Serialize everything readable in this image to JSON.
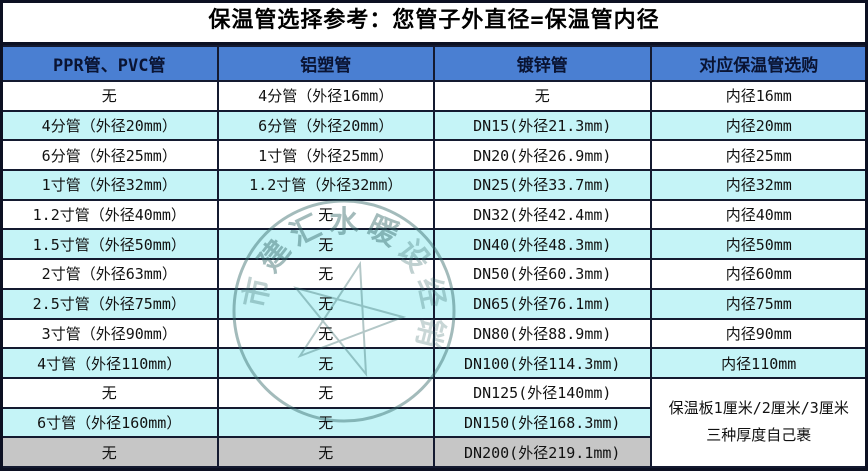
{
  "title": "保温管选择参考：您管子外直径=保温管内径",
  "table": {
    "headers": [
      "PPR管、PVC管",
      "铝塑管",
      "镀锌管",
      "对应保温管选购"
    ],
    "rows": [
      {
        "bg": "white",
        "cells": [
          {
            "text": "无"
          },
          {
            "text": "4分管（外径16mm）"
          },
          {
            "text": "无"
          },
          {
            "text": "内径16mm"
          }
        ]
      },
      {
        "bg": "cyan",
        "cells": [
          {
            "text": "4分管（外径20mm）"
          },
          {
            "text": "6分管（外径20mm）"
          },
          {
            "text": "DN15(外径21.3mm)"
          },
          {
            "text": "内径20mm"
          }
        ]
      },
      {
        "bg": "white",
        "cells": [
          {
            "text": "6分管（外径25mm）"
          },
          {
            "text": "1寸管（外径25mm）"
          },
          {
            "text": "DN20(外径26.9mm)"
          },
          {
            "text": "内径25mm"
          }
        ]
      },
      {
        "bg": "cyan",
        "cells": [
          {
            "text": "1寸管（外径32mm）"
          },
          {
            "text": "1.2寸管（外径32mm）"
          },
          {
            "text": "DN25(外径33.7mm)"
          },
          {
            "text": "内径32mm"
          }
        ]
      },
      {
        "bg": "white",
        "cells": [
          {
            "text": "1.2寸管（外径40mm）"
          },
          {
            "text": "无"
          },
          {
            "text": "DN32(外径42.4mm)"
          },
          {
            "text": "内径40mm"
          }
        ]
      },
      {
        "bg": "cyan",
        "cells": [
          {
            "text": "1.5寸管（外径50mm）"
          },
          {
            "text": "无"
          },
          {
            "text": "DN40(外径48.3mm)"
          },
          {
            "text": "内径50mm"
          }
        ]
      },
      {
        "bg": "white",
        "cells": [
          {
            "text": "2寸管（外径63mm）"
          },
          {
            "text": "无"
          },
          {
            "text": "DN50(外径60.3mm)"
          },
          {
            "text": "内径60mm"
          }
        ]
      },
      {
        "bg": "cyan",
        "cells": [
          {
            "text": "2.5寸管（外径75mm）"
          },
          {
            "text": "无"
          },
          {
            "text": "DN65(外径76.1mm)"
          },
          {
            "text": "内径75mm"
          }
        ]
      },
      {
        "bg": "white",
        "cells": [
          {
            "text": "3寸管（外径90mm）"
          },
          {
            "text": "无"
          },
          {
            "text": "DN80(外径88.9mm)"
          },
          {
            "text": "内径90mm"
          }
        ]
      },
      {
        "bg": "cyan",
        "cells": [
          {
            "text": "4寸管（外径110mm）"
          },
          {
            "text": "无"
          },
          {
            "text": "DN100(外径114.3mm)"
          },
          {
            "text": "内径110mm"
          }
        ]
      },
      {
        "bg": "white",
        "cells": [
          {
            "text": "无"
          },
          {
            "text": "无"
          },
          {
            "text": "DN125(外径140mm)"
          },
          {
            "rowspan": 3,
            "cls": "note",
            "lines": [
              "保温板1厘米/2厘米/3厘米",
              "三种厚度自己裹"
            ]
          }
        ]
      },
      {
        "bg": "cyan",
        "cells": [
          {
            "text": "6寸管（外径160mm）"
          },
          {
            "text": "无"
          },
          {
            "text": "DN150(外径168.3mm)"
          }
        ]
      },
      {
        "bg": "gray",
        "cells": [
          {
            "text": "无"
          },
          {
            "text": "无"
          },
          {
            "text": "DN200(外径219.1mm)"
          }
        ]
      }
    ]
  },
  "stamp": {
    "type": "circular-seal-watermark",
    "chars": [
      "市",
      "建",
      "汇",
      "水",
      "暖",
      "设",
      "经",
      "销"
    ],
    "has_star": true,
    "color": "#3a6e6e"
  },
  "colors": {
    "header_bg": "#4a7fd2",
    "header_text": "#0a1433",
    "row_cyan": "#c5f4f7",
    "row_gray": "#c6c6c6",
    "border": "#141a30",
    "seal": "#3a6e6e"
  }
}
